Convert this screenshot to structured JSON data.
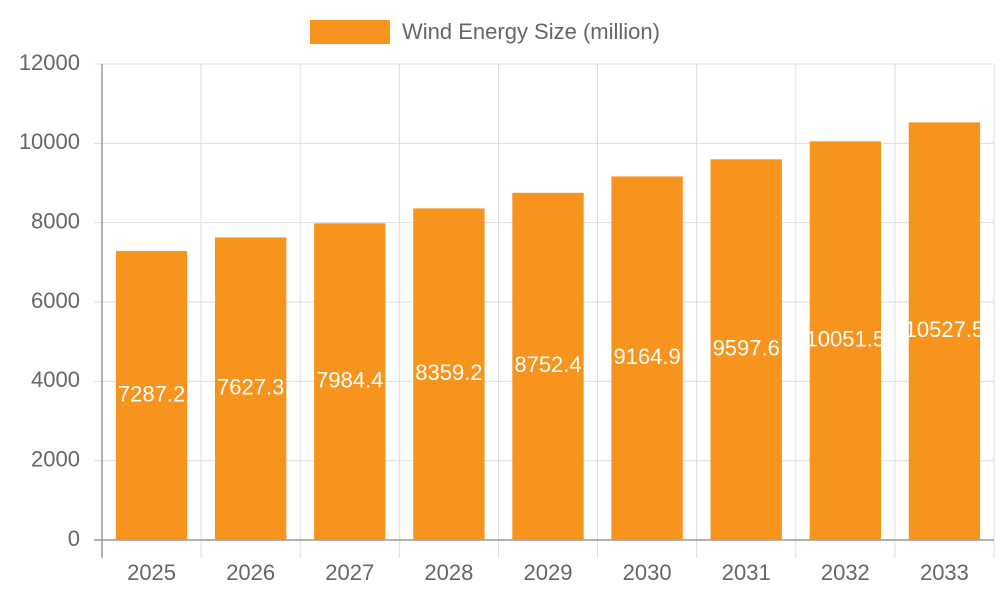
{
  "chart_data": {
    "type": "bar",
    "categories": [
      "2025",
      "2026",
      "2027",
      "2028",
      "2029",
      "2030",
      "2031",
      "2032",
      "2033"
    ],
    "series": [
      {
        "name": "Wind Energy Size (million)",
        "color": "#f7941e",
        "values": [
          7287.2,
          7627.3,
          7984.4,
          8359.2,
          8752.4,
          9164.9,
          9597.6,
          10051.5,
          10527.5
        ]
      }
    ],
    "ylim": [
      0,
      12000
    ],
    "yticks": [
      0,
      2000,
      4000,
      6000,
      8000,
      10000,
      12000
    ],
    "grid": true,
    "legend": "top"
  }
}
